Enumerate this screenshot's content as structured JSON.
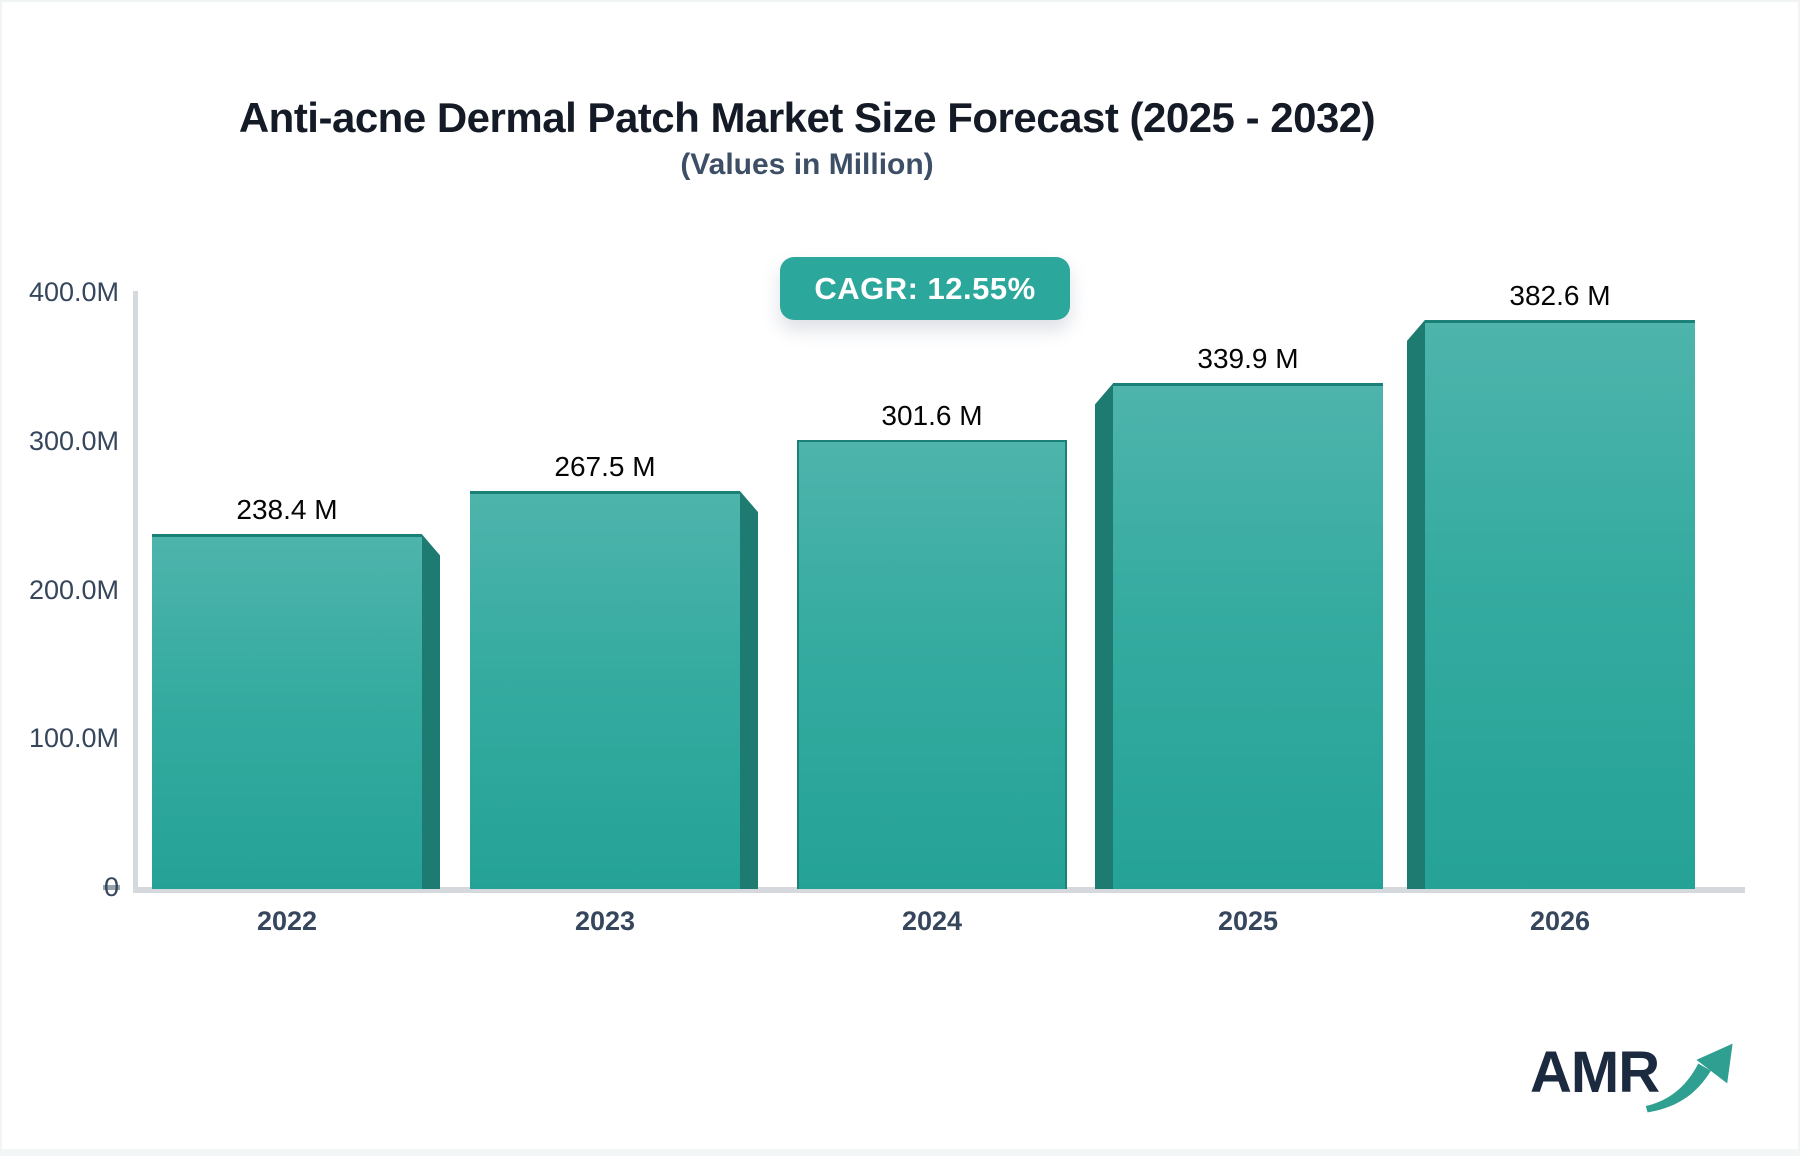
{
  "header": {
    "title": "Anti-acne Dermal Patch Market Size Forecast (2025 - 2032)",
    "subtitle": "(Values in Million)"
  },
  "badge": {
    "label": "CAGR: 12.55%"
  },
  "chart_data": {
    "type": "bar",
    "title": "Anti-acne Dermal Patch Market Size Forecast (2025 - 2032)",
    "subtitle": "(Values in Million)",
    "unit": "Million",
    "cagr_percent": 12.55,
    "categories": [
      "2022",
      "2023",
      "2024",
      "2025",
      "2026"
    ],
    "values": [
      238.4,
      267.5,
      301.6,
      339.9,
      382.6
    ],
    "value_labels": [
      "238.4 M",
      "267.5 M",
      "301.6 M",
      "339.9 M",
      "382.6 M"
    ],
    "xlabel": "",
    "ylabel": "",
    "ylim": [
      0,
      400
    ],
    "y_ticks": [
      {
        "label": "400.0M",
        "value": 400
      },
      {
        "label": "300.0M",
        "value": 300
      },
      {
        "label": "200.0M",
        "value": 200
      },
      {
        "label": "100.0M",
        "value": 100
      },
      {
        "label": "0",
        "value": 0
      }
    ],
    "grid": false,
    "legend": false,
    "bar_color": "#35aba0"
  },
  "logo": {
    "text": "AMR"
  },
  "colors": {
    "bar_face_top": "#4eb4ac",
    "bar_face_bottom": "#25a296",
    "bar_side": "#1e7b71",
    "bar_edge": "#1a8176",
    "badge_bg": "#2ba89b",
    "axis_line": "#d5d9de",
    "tick_text": "#36465c",
    "value_text": "#050505",
    "title_text": "#141b26",
    "subtitle_text": "#3d4f66",
    "logo_text": "#1c2a3f",
    "logo_arrow": "#2e9f90"
  }
}
